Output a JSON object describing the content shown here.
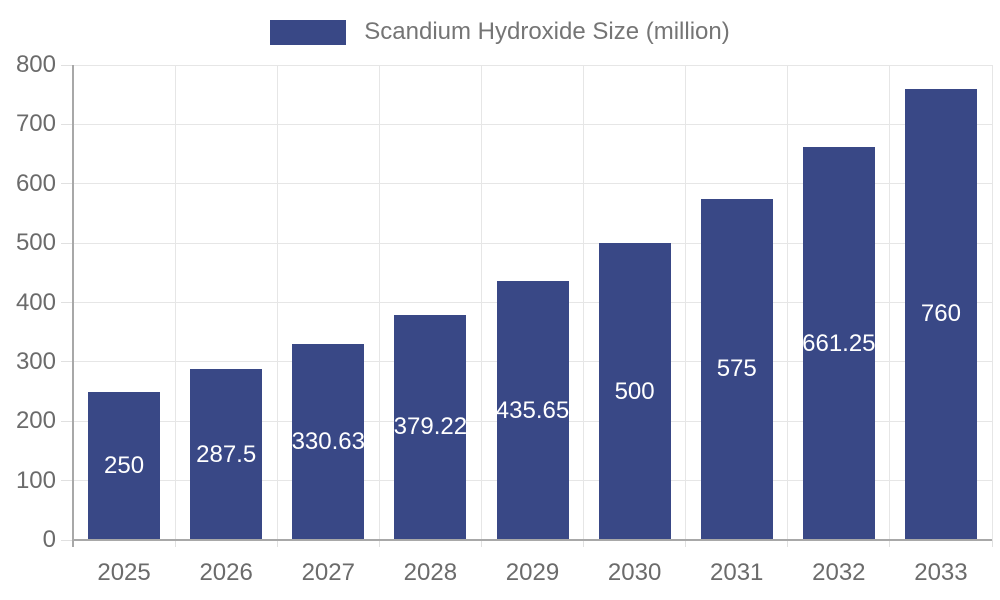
{
  "legend": {
    "label": "Scandium Hydroxide Size (million)"
  },
  "colors": {
    "bar": "#394886",
    "grid": "#e6e6e6",
    "axis": "#a8a8a8",
    "tick": "#e0e0e0",
    "tick_text": "#6b6b6b",
    "legend_text": "#757575",
    "bar_label": "#ffffff"
  },
  "chart_data": {
    "type": "bar",
    "title": "Scandium Hydroxide Size (million)",
    "categories": [
      "2025",
      "2026",
      "2027",
      "2028",
      "2029",
      "2030",
      "2031",
      "2032",
      "2033"
    ],
    "values": [
      250,
      287.5,
      330.63,
      379.22,
      435.65,
      500,
      575,
      661.25,
      760
    ],
    "value_labels": [
      "250",
      "287.5",
      "330.63",
      "379.22",
      "435.65",
      "500",
      "575",
      "661.25",
      "760"
    ],
    "xlabel": "",
    "ylabel": "",
    "ylim": [
      0,
      800
    ],
    "ytick_step": 100,
    "ytick_labels": [
      "0",
      "100",
      "200",
      "300",
      "400",
      "500",
      "600",
      "700",
      "800"
    ],
    "grid": true,
    "legend_position": "top-center",
    "bar_label_position": "center-of-bar"
  }
}
